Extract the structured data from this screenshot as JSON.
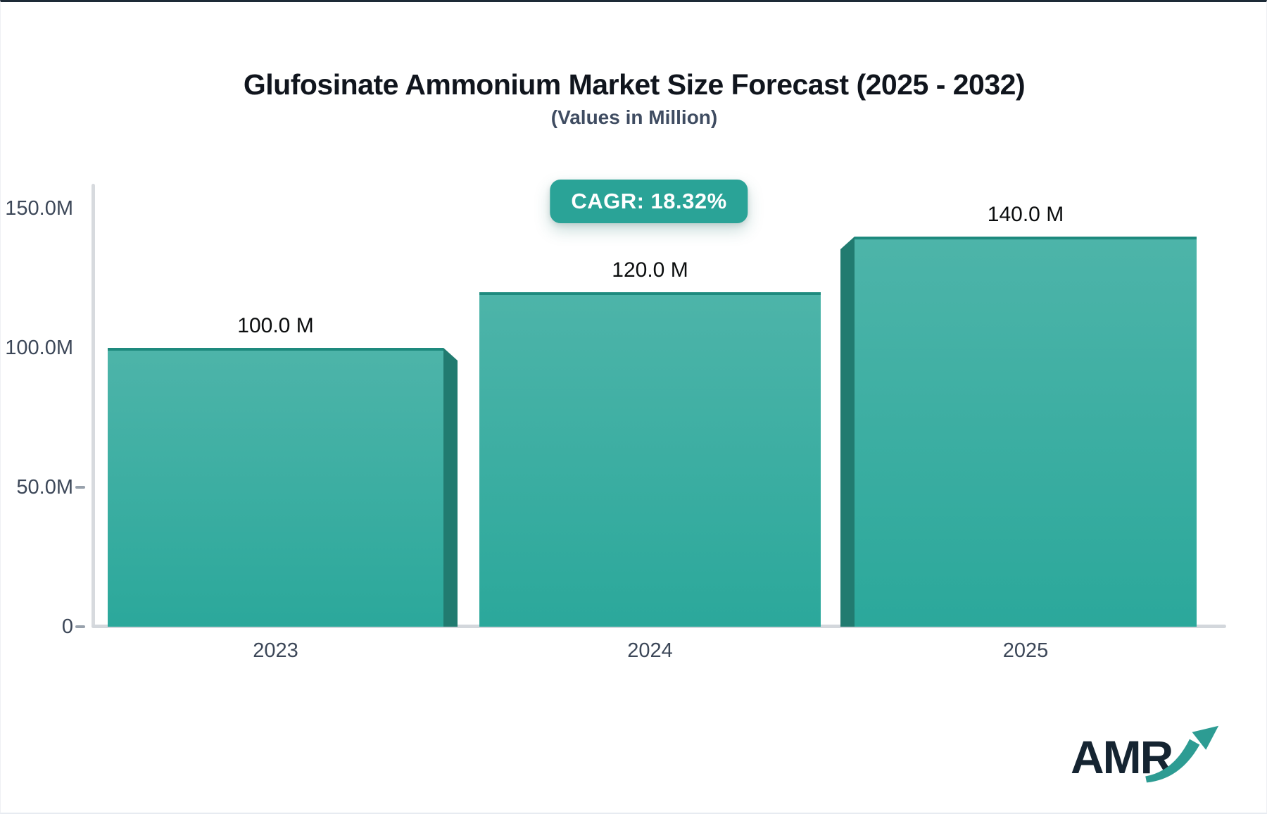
{
  "header": {
    "title": "Glufosinate Ammonium Market Size Forecast (2025 - 2032)",
    "subtitle": "(Values in Million)",
    "cagr_badge": "CAGR: 18.32%"
  },
  "footer": {
    "logo_text": "AMR"
  },
  "chart_data": {
    "type": "bar",
    "title": "Glufosinate Ammonium Market Size Forecast (2025 - 2032)",
    "subtitle": "(Values in Million)",
    "annotation": "CAGR: 18.32%",
    "unit": "Million",
    "categories": [
      "2023",
      "2024",
      "2025"
    ],
    "values": [
      100.0,
      120.0,
      140.0
    ],
    "value_labels": [
      "100.0 M",
      "120.0 M",
      "140.0 M"
    ],
    "ylim": [
      0,
      150
    ],
    "yticks": [
      {
        "value": 0,
        "label": "0",
        "dash": true
      },
      {
        "value": 50,
        "label": "50.0M",
        "dash": true
      },
      {
        "value": 100,
        "label": "100.0M",
        "dash": false
      },
      {
        "value": 150,
        "label": "150.0M",
        "dash": false
      }
    ],
    "grid": false,
    "legend": "none",
    "colors": {
      "bar_gradient_top": "#4db4a9",
      "bar_gradient_bottom": "#2ba89b",
      "bar_top_edge": "#1e8a7e",
      "bar_side_panel": "#217b70",
      "accent_badge": "#2aa397",
      "axis_line": "#d7dade",
      "logo_dark": "#152431",
      "logo_teal": "#2d9c93"
    }
  }
}
